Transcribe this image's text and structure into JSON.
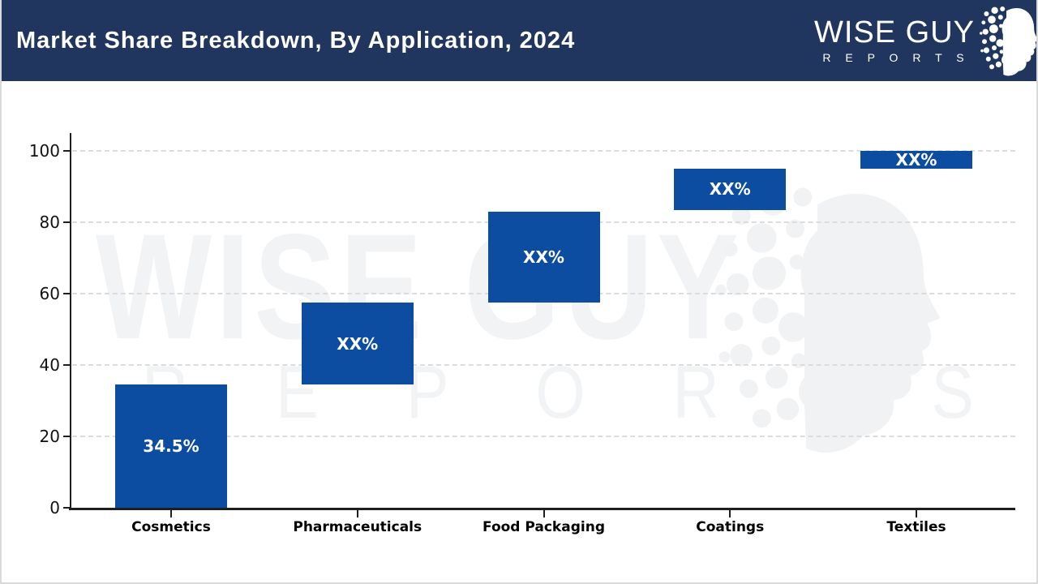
{
  "header": {
    "title": "Market Share Breakdown, By Application, 2024",
    "bg_color": "#21365e",
    "logo": {
      "name": "WISE GUY",
      "subtitle": "R E P O R T S"
    }
  },
  "watermark": {
    "line1": "WISE GUY",
    "line2": "R E P O R T S"
  },
  "chart_data": {
    "type": "bar",
    "subtype": "waterfall",
    "title": "Market Share Breakdown, By Application, 2024",
    "categories": [
      "Cosmetics",
      "Pharmaceuticals",
      "Food Packaging",
      "Coatings",
      "Textiles"
    ],
    "segments": [
      {
        "category": "Cosmetics",
        "start": 0,
        "end": 34.5,
        "label": "34.5%"
      },
      {
        "category": "Pharmaceuticals",
        "start": 34.5,
        "end": 57.5,
        "label": "XX%"
      },
      {
        "category": "Food Packaging",
        "start": 57.5,
        "end": 83,
        "label": "XX%"
      },
      {
        "category": "Coatings",
        "start": 83.5,
        "end": 95,
        "label": "XX%"
      },
      {
        "category": "Textiles",
        "start": 95,
        "end": 100,
        "label": "XX%"
      }
    ],
    "xlabel": "",
    "ylabel": "",
    "ylim": [
      0,
      100
    ],
    "yticks": [
      0,
      20,
      40,
      60,
      80,
      100
    ],
    "grid": true,
    "legend": false,
    "bar_color": "#0c4da2",
    "bar_label_color": "#ffffff",
    "axis_color": "#1f1f1f",
    "grid_color": "#dcdcdc"
  }
}
